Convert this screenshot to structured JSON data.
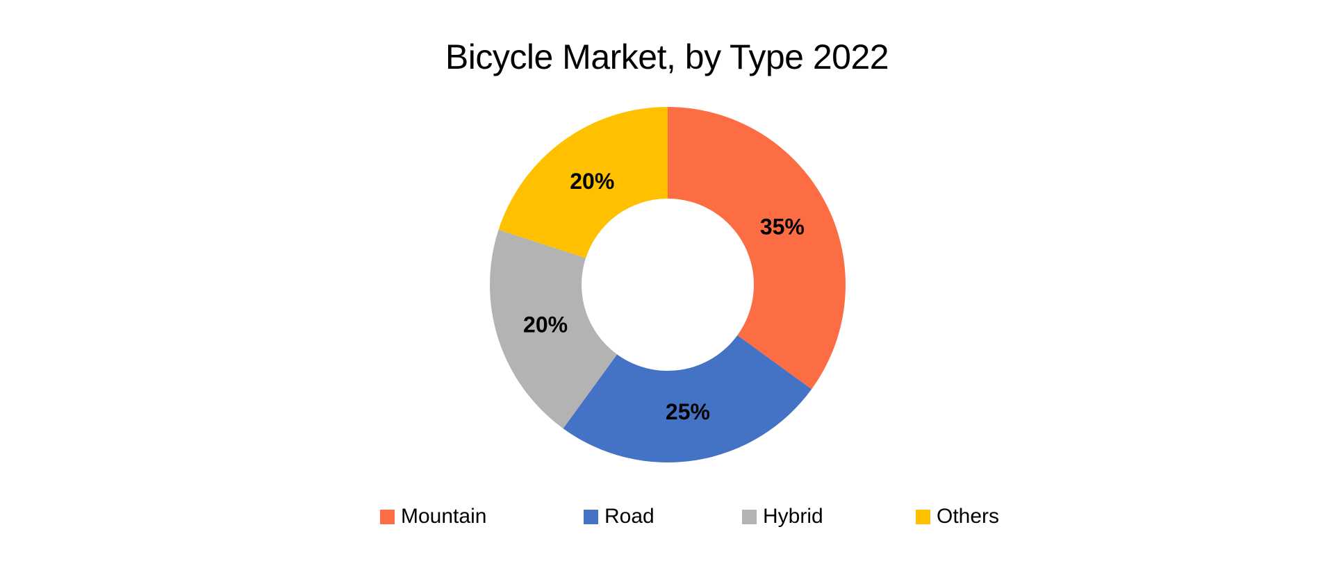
{
  "page": {
    "background": "#FFFFFF"
  },
  "chart_data": {
    "type": "pie",
    "subtype": "donut",
    "title": "Bicycle Market, by Type 2022",
    "categories": [
      "Mountain",
      "Road",
      "Hybrid",
      "Others"
    ],
    "values": [
      35,
      25,
      20,
      20
    ],
    "unit": "%",
    "data_labels": [
      "35%",
      "25%",
      "20%",
      "20%"
    ],
    "colors": [
      "#FC6D44",
      "#4472C4",
      "#B3B3B3",
      "#FFC000"
    ],
    "label_color": "#000000",
    "title_color": "#000000",
    "start_angle_deg": 0,
    "direction": "clockwise",
    "hole_ratio": 0.485,
    "grid": false,
    "legend_position": "bottom",
    "legend": [
      {
        "label": "Mountain",
        "color": "#FC6D44"
      },
      {
        "label": "Road",
        "color": "#4472C4"
      },
      {
        "label": "Hybrid",
        "color": "#B3B3B3"
      },
      {
        "label": "Others",
        "color": "#FFC000"
      }
    ]
  }
}
